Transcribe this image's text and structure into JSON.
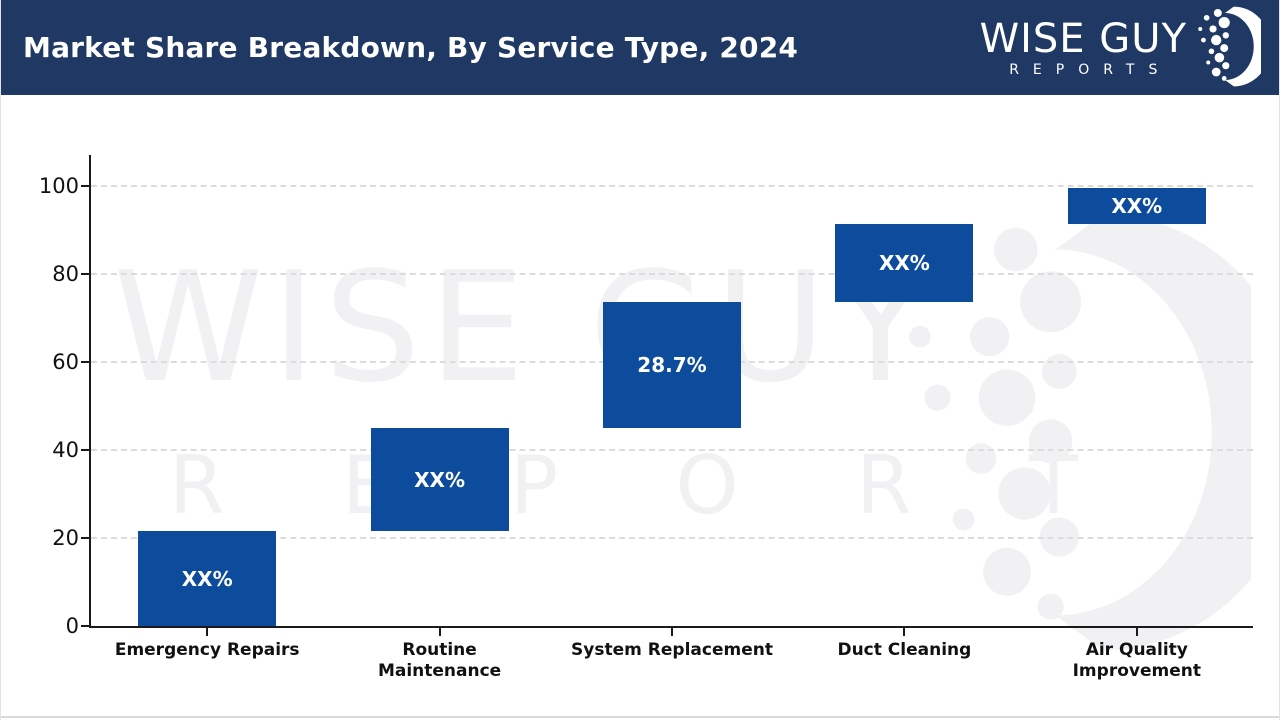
{
  "header": {
    "title": "Market Share Breakdown, By Service Type, 2024",
    "background": "#203864",
    "logo": {
      "line1": "WISE GUY",
      "line2": "REPORTS"
    }
  },
  "watermark": {
    "line1": "WISE GUY",
    "line2": "R E P O R T S"
  },
  "chart_data": {
    "type": "bar",
    "variant": "floating_waterfall",
    "title": "Market Share Breakdown, By Service Type, 2024",
    "categories": [
      "Emergency Repairs",
      "Routine Maintenance",
      "System Replacement",
      "Duct Cleaning",
      "Air Quality Improvement"
    ],
    "categories_display": [
      [
        "Emergency Repairs"
      ],
      [
        "Routine",
        "Maintenance"
      ],
      [
        "System Replacement"
      ],
      [
        "Duct Cleaning"
      ],
      [
        "Air Quality",
        "Improvement"
      ]
    ],
    "segments": [
      {
        "category": "Emergency Repairs",
        "start": 0,
        "end": 21.5,
        "label": "XX%"
      },
      {
        "category": "Routine Maintenance",
        "start": 21.5,
        "end": 45,
        "label": "XX%"
      },
      {
        "category": "System Replacement",
        "start": 45,
        "end": 73.7,
        "label": "28.7%"
      },
      {
        "category": "Duct Cleaning",
        "start": 73.7,
        "end": 91.3,
        "label": "XX%"
      },
      {
        "category": "Air Quality Improvement",
        "start": 91.3,
        "end": 99.6,
        "label": "XX%"
      }
    ],
    "yticks": [
      0,
      20,
      40,
      60,
      80,
      100
    ],
    "ylim": [
      0,
      107
    ],
    "xlabel": "",
    "ylabel": "",
    "grid": {
      "axis": "y",
      "style": "dashed",
      "color": "#dcdcdc"
    },
    "bar_color": "#0d4b9c",
    "bar_label_color": "#ffffff",
    "axis_color": "#1a1a1a"
  }
}
